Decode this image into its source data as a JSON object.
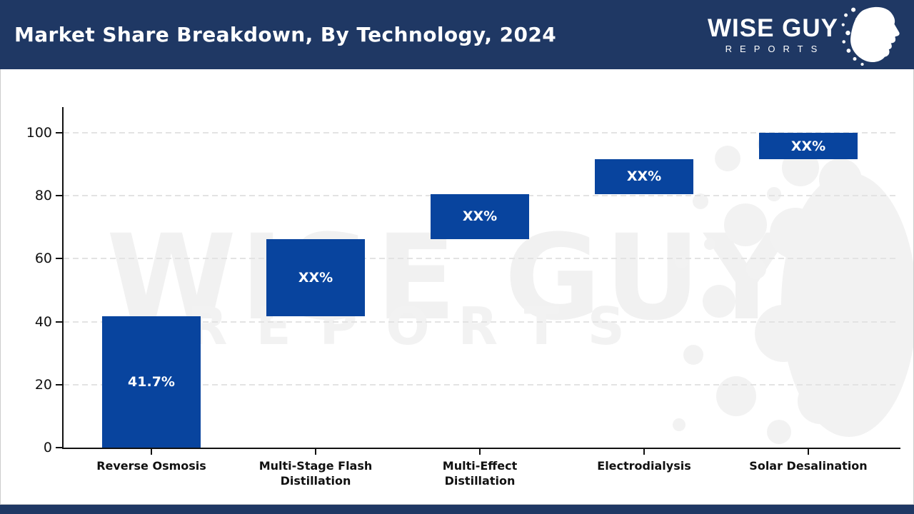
{
  "header": {
    "title": "Market Share Breakdown, By Technology, 2024",
    "logo": {
      "line1": "WISE GUY",
      "line2": "REPORTS"
    }
  },
  "watermark": {
    "line1": "WISE GUY",
    "line2": "REPORTS"
  },
  "colors": {
    "header_bg": "#1f3864",
    "footer_bg": "#1f3864",
    "bar": "#08449e",
    "bar_label": "#ffffff",
    "axis": "#111111",
    "grid": "#e3e3e3",
    "watermark": "#f1f1f1",
    "page_border": "#cccccc"
  },
  "chart_data": {
    "type": "bar",
    "subtype": "waterfall",
    "title": "Market Share Breakdown, By Technology, 2024",
    "xlabel": "",
    "ylabel": "",
    "ylim": [
      0,
      100
    ],
    "yticks": [
      0,
      20,
      40,
      60,
      80,
      100
    ],
    "grid": true,
    "grid_style": "dashed",
    "legend": false,
    "bar_color": "#08449e",
    "categories": [
      "Reverse Osmosis",
      "Multi-Stage Flash Distillation",
      "Multi-Effect Distillation",
      "Electrodialysis",
      "Solar Desalination"
    ],
    "segments": [
      {
        "category": "Reverse Osmosis",
        "start": 0,
        "end": 41.7,
        "label": "41.7%"
      },
      {
        "category": "Multi-Stage Flash Distillation",
        "start": 41.7,
        "end": 66.2,
        "label": "XX%"
      },
      {
        "category": "Multi-Effect Distillation",
        "start": 66.2,
        "end": 80.6,
        "label": "XX%"
      },
      {
        "category": "Electrodialysis",
        "start": 80.6,
        "end": 91.6,
        "label": "XX%"
      },
      {
        "category": "Solar Desalination",
        "start": 91.6,
        "end": 100,
        "label": "XX%"
      }
    ]
  }
}
